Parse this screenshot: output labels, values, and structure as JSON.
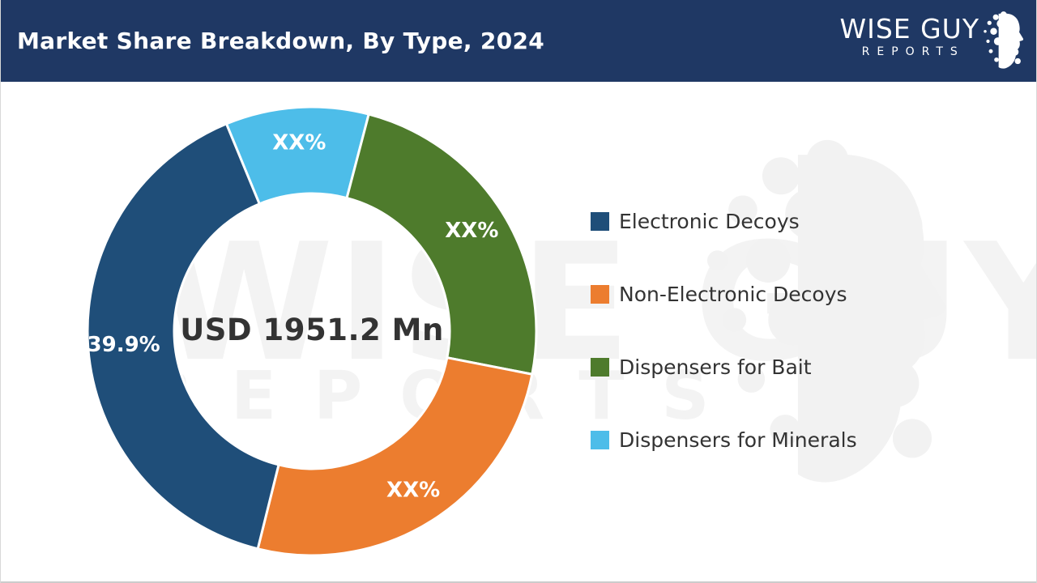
{
  "header": {
    "title": "Market Share Breakdown, By Type, 2024",
    "logo": {
      "name": "WISE GUY",
      "sub": "REPORTS"
    }
  },
  "watermark": {
    "line1": "WISE GUY",
    "line2": "REPORTS"
  },
  "chart_data": {
    "type": "pie",
    "subtype": "donut",
    "title": "Market Share Breakdown, By Type, 2024",
    "center_label": "USD 1951.2 Mn",
    "legend_position": "right",
    "start_angle_deg": -22.4,
    "categories": [
      "Electronic Decoys",
      "Non-Electronic Decoys",
      "Dispensers for Bait",
      "Dispensers for Minerals"
    ],
    "values_pct": [
      39.9,
      25.8,
      24.0,
      10.3
    ],
    "slice_labels": [
      "39.9%",
      "XX%",
      "XX%",
      "XX%"
    ],
    "colors": [
      "#1f4e79",
      "#ec7d2f",
      "#4e7b2c",
      "#4dbde9"
    ],
    "segments_clockwise_from_top_left": [
      {
        "name": "Dispensers for Minerals",
        "pct": 10.3,
        "label": "XX%",
        "color": "#4dbde9"
      },
      {
        "name": "Dispensers for Bait",
        "pct": 24.0,
        "label": "XX%",
        "color": "#4e7b2c"
      },
      {
        "name": "Non-Electronic Decoys",
        "pct": 25.8,
        "label": "XX%",
        "color": "#ec7d2f"
      },
      {
        "name": "Electronic Decoys",
        "pct": 39.9,
        "label": "39.9%",
        "color": "#1f4e79"
      }
    ],
    "legend": [
      {
        "label": "Electronic Decoys",
        "color": "#1f4e79"
      },
      {
        "label": "Non-Electronic Decoys",
        "color": "#ec7d2f"
      },
      {
        "label": "Dispensers for Bait",
        "color": "#4e7b2c"
      },
      {
        "label": "Dispensers for Minerals",
        "color": "#4dbde9"
      }
    ]
  }
}
